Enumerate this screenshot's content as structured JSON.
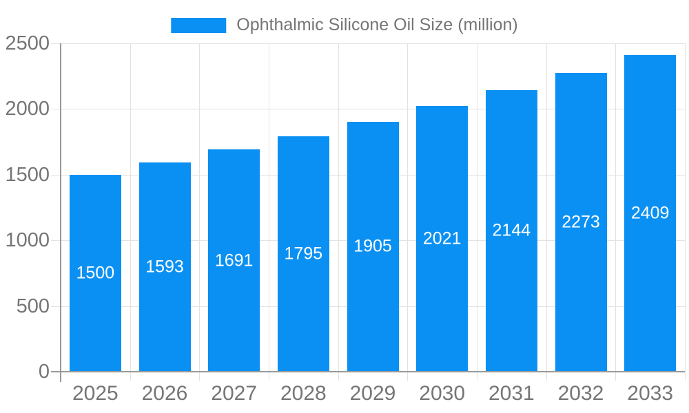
{
  "legend": {
    "label": "Ophthalmic Silicone Oil Size (million)",
    "swatch_color": "#0a90f3"
  },
  "chart_data": {
    "type": "bar",
    "title": "Ophthalmic Silicone Oil Size (million)",
    "categories": [
      "2025",
      "2026",
      "2027",
      "2028",
      "2029",
      "2030",
      "2031",
      "2032",
      "2033"
    ],
    "values": [
      1500,
      1593,
      1691,
      1795,
      1905,
      2021,
      2144,
      2273,
      2409
    ],
    "series": [
      {
        "name": "Ophthalmic Silicone Oil Size (million)",
        "values": [
          1500,
          1593,
          1691,
          1795,
          1905,
          2021,
          2144,
          2273,
          2409
        ]
      }
    ],
    "xlabel": "",
    "ylabel": "",
    "ylim": [
      0,
      2500
    ],
    "yticks": [
      0,
      500,
      1000,
      1500,
      2000,
      2500
    ],
    "grid": true,
    "legend_position": "top",
    "bar_color": "#0a90f3",
    "value_label_color": "#ffffff",
    "axis_text_color": "#757575",
    "grid_color": "#e2e2e2",
    "axis_line_color": "#999999",
    "background_color": "#ffffff"
  }
}
